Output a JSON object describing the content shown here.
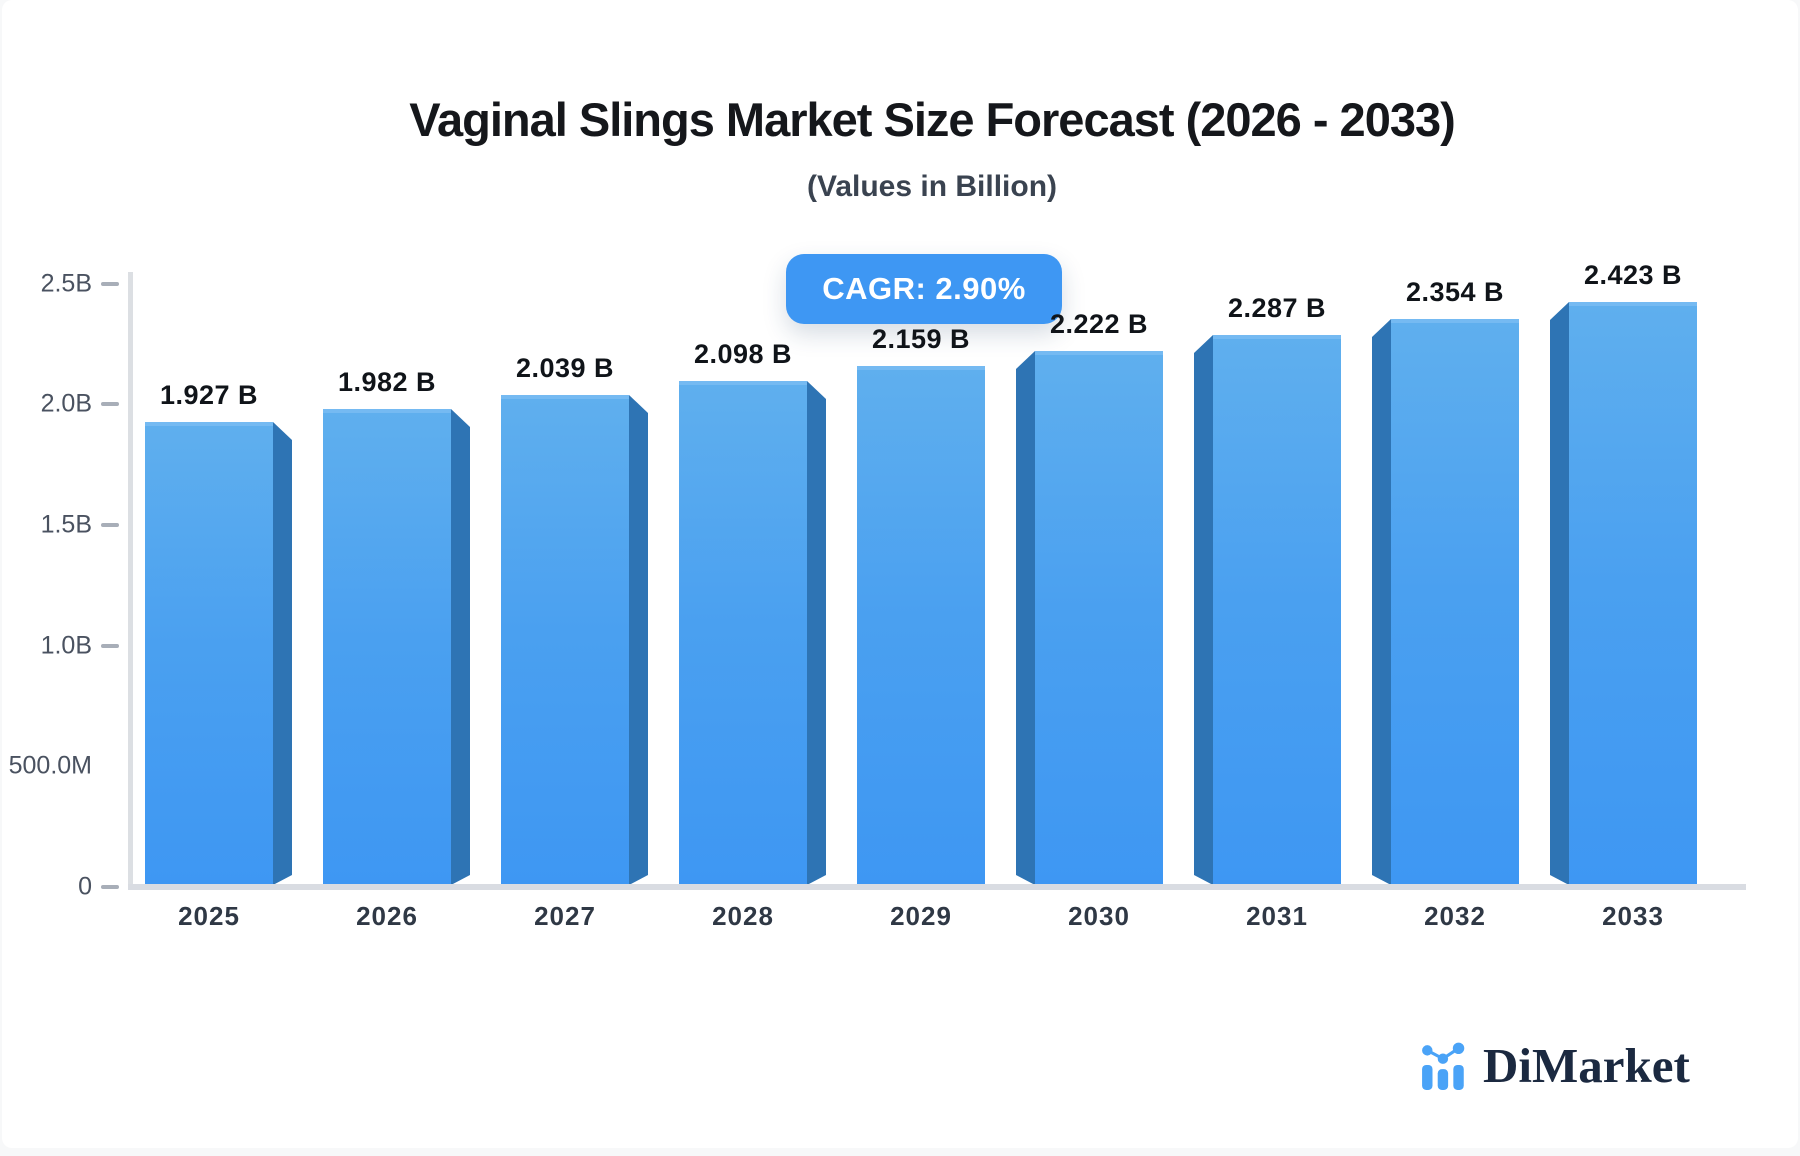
{
  "title": "Vaginal Slings Market Size Forecast (2026 - 2033)",
  "subtitle": "(Values in Billion)",
  "badge": {
    "label": "CAGR: 2.90%"
  },
  "brand": {
    "name": "DiMarket",
    "icon": "bar-chart-trend-icon"
  },
  "colors": {
    "bar_face_top": "#5fafee",
    "bar_face_bottom": "#3e97f3",
    "bar_top_edge": "#75baf2",
    "bar_side": "#2e74b4",
    "badge_bg": "#3e97f3",
    "axis_line": "#d9dce2",
    "tick_dash": "#a8aeb8",
    "y_label": "#4a5260",
    "x_label": "#2f3845",
    "value_label": "#101419",
    "title_text": "#15171b",
    "subtitle_text": "#3a4350",
    "logo_text": "#1b2940",
    "logo_blue": "#4aa3f7"
  },
  "chart_data": {
    "type": "bar",
    "title": "Vaginal Slings Market Size Forecast (2026 - 2033)",
    "subtitle": "(Values in Billion)",
    "cagr": "2.90%",
    "unit": "Billion USD",
    "categories": [
      "2025",
      "2026",
      "2027",
      "2028",
      "2029",
      "2030",
      "2031",
      "2032",
      "2033"
    ],
    "values": [
      1.927,
      1.982,
      2.039,
      2.098,
      2.159,
      2.222,
      2.287,
      2.354,
      2.423
    ],
    "value_labels": [
      "1.927 B",
      "1.982 B",
      "2.039 B",
      "2.098 B",
      "2.159 B",
      "2.222 B",
      "2.287 B",
      "2.354 B",
      "2.423 B"
    ],
    "xlabel": "",
    "ylabel": "",
    "ylim": [
      0,
      2.5
    ],
    "grid": "off",
    "legend": "none",
    "y_ticks": [
      {
        "label": "2.5B",
        "value": 2.5,
        "dash": true
      },
      {
        "label": "2.0B",
        "value": 2.0,
        "dash": true
      },
      {
        "label": "1.5B",
        "value": 1.5,
        "dash": true
      },
      {
        "label": "1.0B",
        "value": 1.0,
        "dash": true
      },
      {
        "label": "500.0M",
        "value": 0.5,
        "dash": false
      },
      {
        "label": "0",
        "value": 0,
        "dash": true
      }
    ]
  }
}
